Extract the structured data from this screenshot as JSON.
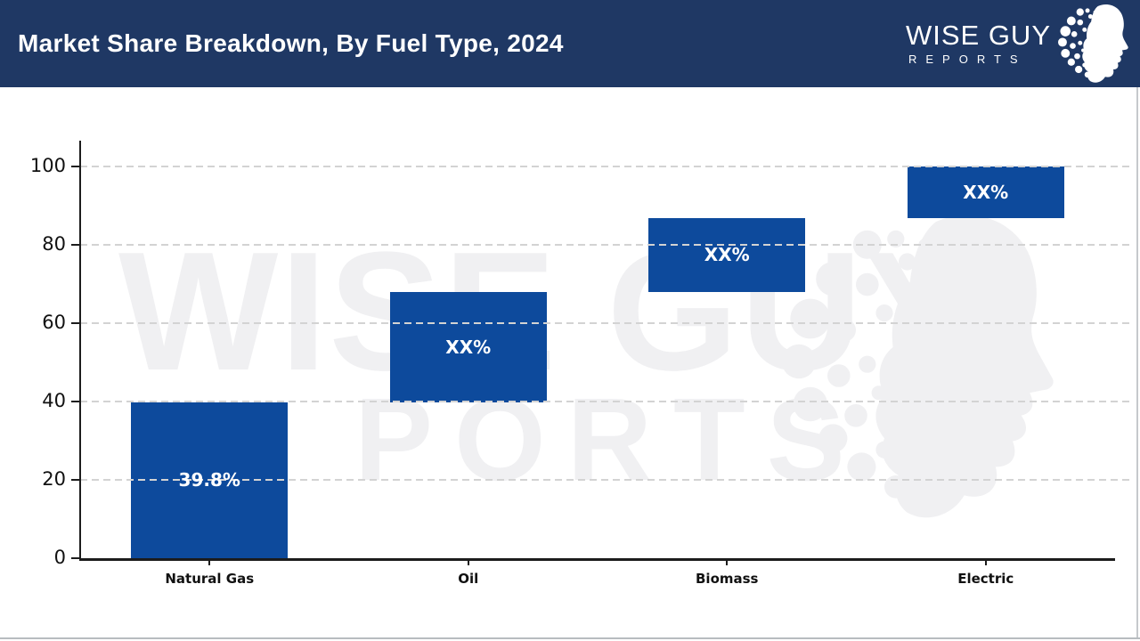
{
  "header": {
    "title": "Market Share Breakdown, By Fuel Type, 2024",
    "logo": {
      "wordmark": "WISE GUY",
      "subtitle": "REPORTS"
    }
  },
  "watermark": {
    "line1": "WISE GUY",
    "line2": "PORTS"
  },
  "chart_data": {
    "type": "bar",
    "subtype": "waterfall-floating-bars",
    "title": "Market Share Breakdown, By Fuel Type, 2024",
    "categories": [
      "Natural Gas",
      "Oil",
      "Biomass",
      "Electric"
    ],
    "segments": [
      {
        "category": "Natural Gas",
        "start": 0,
        "end": 39.8,
        "label": "39.8%"
      },
      {
        "category": "Oil",
        "start": 39.8,
        "end": 68,
        "label": "XX%"
      },
      {
        "category": "Biomass",
        "start": 68,
        "end": 86.8,
        "label": "XX%"
      },
      {
        "category": "Electric",
        "start": 86.8,
        "end": 100,
        "label": "XX%"
      }
    ],
    "yticks": [
      0,
      20,
      40,
      60,
      80,
      100
    ],
    "ylim": [
      0,
      100
    ],
    "xlabel": "",
    "ylabel": "",
    "grid": "horizontal-dashed",
    "legend": "none",
    "colors": {
      "bar": "#0d4a9c",
      "bar_label": "#ffffff",
      "header_bg": "#1f3864",
      "gridline": "#d3d3d3",
      "axis": "#1c1c1c",
      "tick_label": "#111111",
      "watermark": "#f0f0f2"
    }
  }
}
